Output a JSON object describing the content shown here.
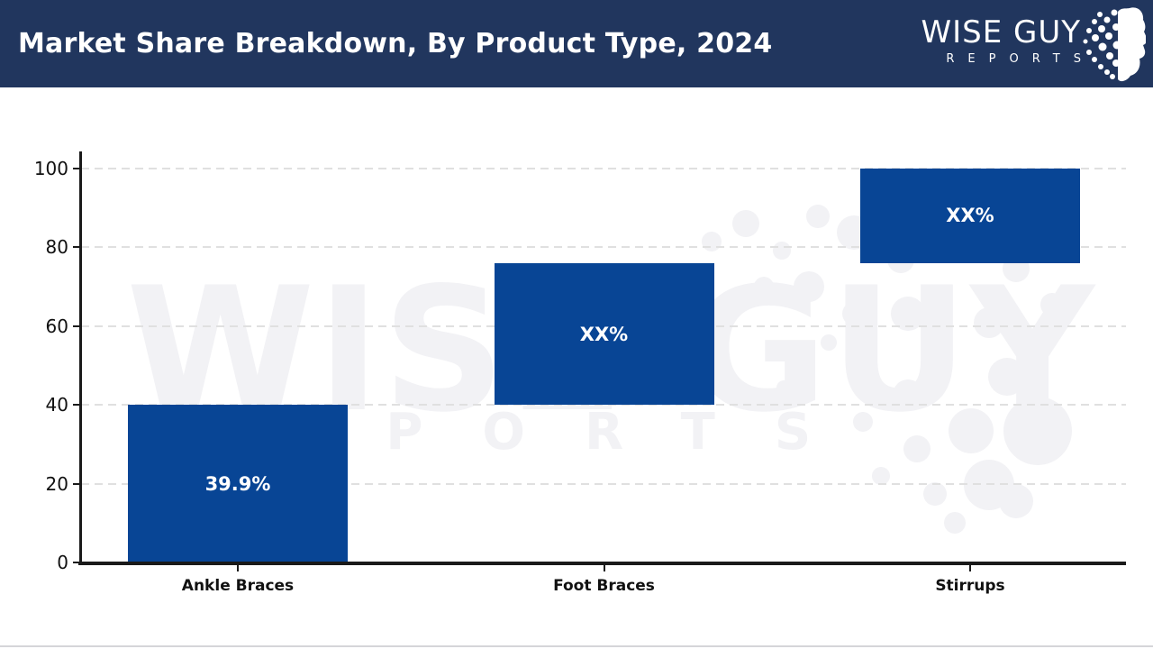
{
  "header": {
    "title": "Market Share Breakdown, By Product Type, 2024",
    "logo": {
      "line1": "WISE GUY",
      "line2": "REPORTS"
    }
  },
  "watermark": {
    "line1": "WISE GUY",
    "line2": "REPORTS"
  },
  "colors": {
    "header_bg": "#21365E",
    "bar_blue": "#084595",
    "watermark_gray": "#F2F2F5",
    "gridline_gray": "#E0E0E0",
    "axis_black": "#1A1A1A",
    "bar_label_white": "#FFFFFF"
  },
  "chart_data": {
    "type": "bar",
    "subtype": "waterfall",
    "title": "Market Share Breakdown, By Product Type, 2024",
    "categories": [
      "Ankle Braces",
      "Foot Braces",
      "Stirrups"
    ],
    "segments": [
      {
        "category": "Ankle Braces",
        "start": 0,
        "end": 39.9,
        "label": "39.9%"
      },
      {
        "category": "Foot Braces",
        "start": 39.9,
        "end": 75.9,
        "label": "XX%"
      },
      {
        "category": "Stirrups",
        "start": 75.9,
        "end": 100,
        "label": "XX%"
      }
    ],
    "yticks": [
      0,
      20,
      40,
      60,
      80,
      100
    ],
    "ylim": [
      0,
      104
    ],
    "xlabel": "",
    "ylabel": "",
    "grid": "horizontal-dashed",
    "legend": "none"
  }
}
